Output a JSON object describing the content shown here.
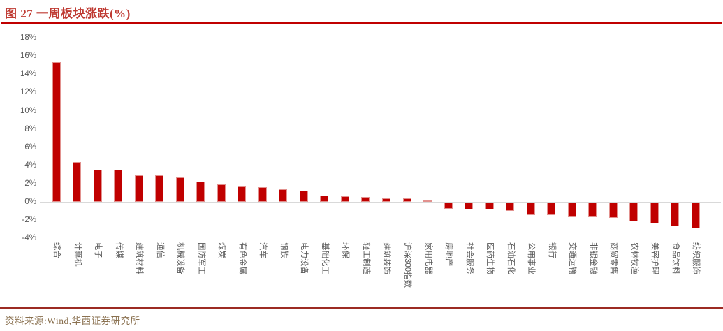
{
  "title": "图 27 一周板块涨跌(%)",
  "source": "资料来源:Wind,华西证券研究所",
  "colors": {
    "bar_fill": "#c00000",
    "bar_edge": "#e2918e",
    "title_red": "#bf3a32",
    "title_rule_red": "#c00000",
    "source_rule_red": "#9c2b23",
    "source_text_brown": "#8a7150",
    "axis_line_gray": "#d9d9d9",
    "tick_text_gray": "#595959"
  },
  "chart_data": {
    "type": "bar",
    "title": "图 27 一周板块涨跌(%)",
    "xlabel": "",
    "ylabel": "",
    "ylim": [
      -4,
      18
    ],
    "yticks": [
      18,
      16,
      14,
      12,
      10,
      8,
      6,
      4,
      2,
      0,
      -2,
      -4
    ],
    "ytick_suffix": "%",
    "grid": false,
    "legend_position": "none",
    "categories": [
      "综合",
      "计算机",
      "电子",
      "传媒",
      "建筑材料",
      "通信",
      "机械设备",
      "国防军工",
      "煤炭",
      "有色金属",
      "汽车",
      "钢铁",
      "电力设备",
      "基础化工",
      "环保",
      "轻工制造",
      "建筑装饰",
      "沪深300指数",
      "家用电器",
      "房地产",
      "社会服务",
      "医药生物",
      "石油石化",
      "公用事业",
      "银行",
      "交通运输",
      "非银金融",
      "商贸零售",
      "农林牧渔",
      "美容护理",
      "食品饮料",
      "纺织服饰"
    ],
    "values": [
      15.3,
      4.4,
      3.5,
      3.5,
      2.9,
      2.9,
      2.7,
      2.2,
      1.9,
      1.7,
      1.6,
      1.4,
      1.2,
      0.7,
      0.6,
      0.5,
      0.4,
      0.4,
      0.1,
      -0.7,
      -0.8,
      -0.8,
      -0.9,
      -1.4,
      -1.4,
      -1.6,
      -1.6,
      -1.7,
      -2.1,
      -2.3,
      -2.6,
      -2.8
    ]
  }
}
